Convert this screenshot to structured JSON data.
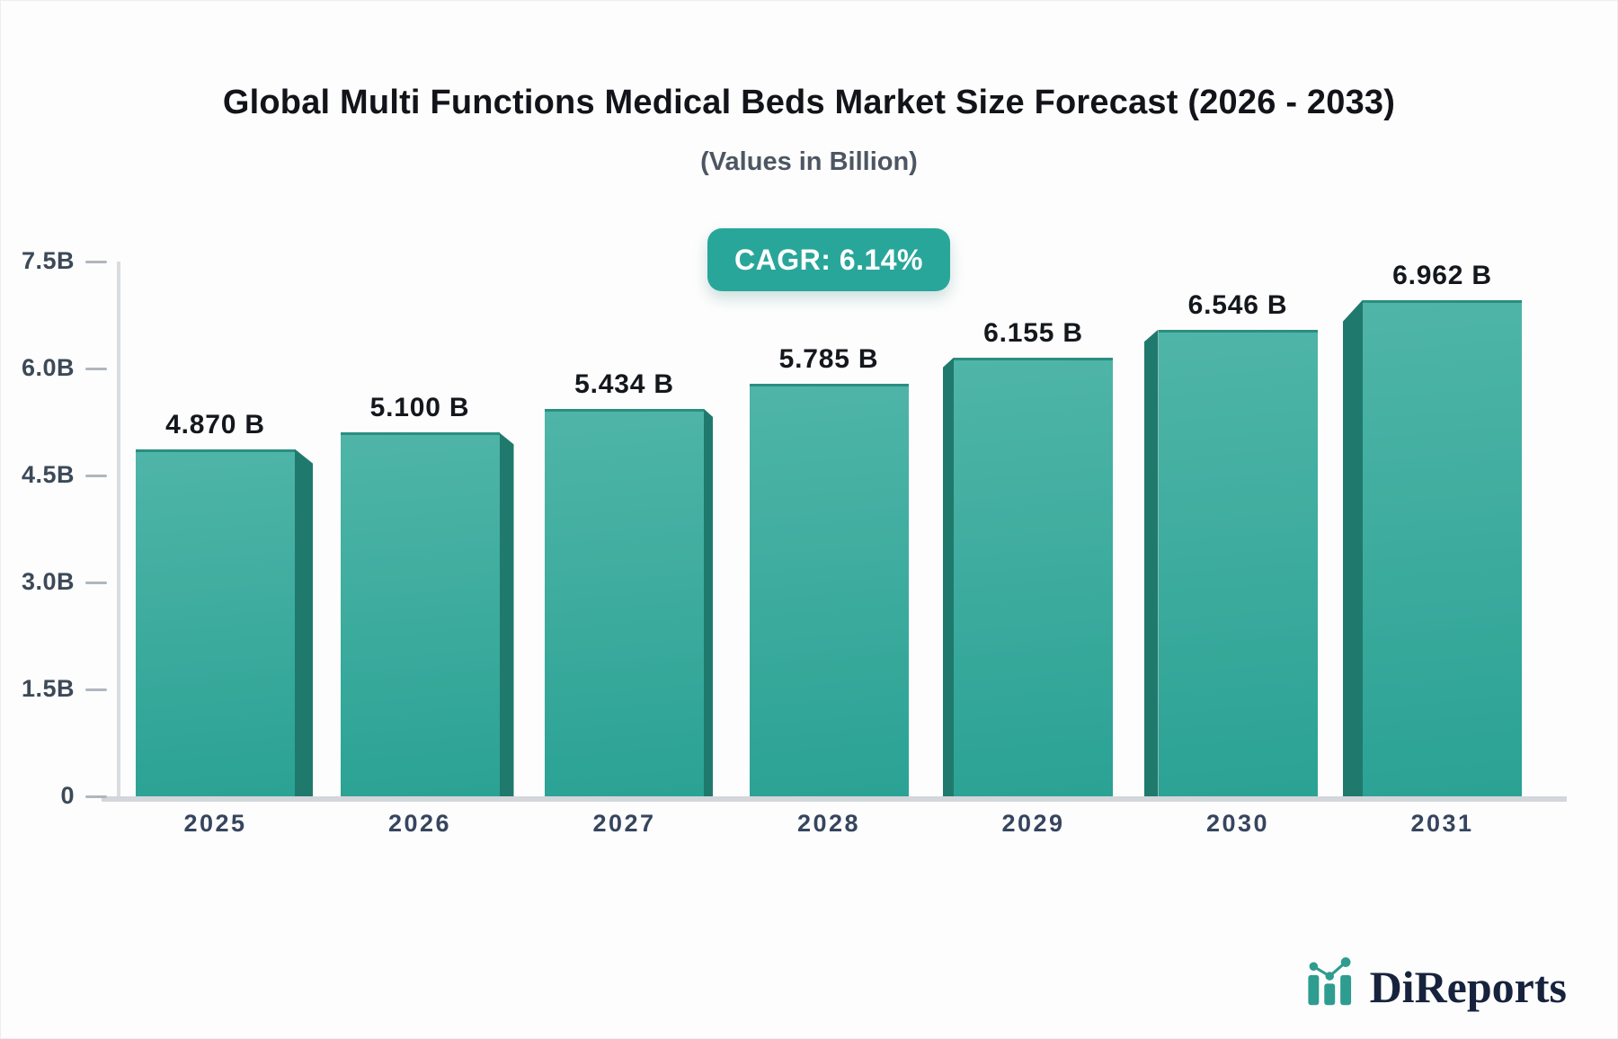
{
  "header": {
    "title": "Global Multi Functions Medical Beds Market Size Forecast (2026 - 2033)",
    "subtitle": "(Values in Billion)",
    "cagr_badge": "CAGR: 6.14%"
  },
  "chart_data": {
    "type": "bar",
    "title": "Global Multi Functions Medical Beds Market Size Forecast (2026 - 2033)",
    "subtitle": "(Values in Billion)",
    "annotation": "CAGR: 6.14%",
    "categories": [
      "2025",
      "2026",
      "2027",
      "2028",
      "2029",
      "2030",
      "2031"
    ],
    "values": [
      4.87,
      5.1,
      5.434,
      5.785,
      6.155,
      6.546,
      6.962
    ],
    "value_labels": [
      "4.870 B",
      "5.100 B",
      "5.434 B",
      "5.785 B",
      "6.155 B",
      "6.546 B",
      "6.962 B"
    ],
    "xlabel": "",
    "ylabel": "",
    "ylim": [
      0,
      7.5
    ],
    "yticks": [
      {
        "value": 0,
        "label": "0"
      },
      {
        "value": 1.5,
        "label": "1.5B"
      },
      {
        "value": 3.0,
        "label": "3.0B"
      },
      {
        "value": 4.5,
        "label": "4.5B"
      },
      {
        "value": 6.0,
        "label": "6.0B"
      },
      {
        "value": 7.5,
        "label": "7.5B"
      }
    ],
    "grid": false,
    "legend": false,
    "bar_style": "3d-extruded, vanishing point at center"
  },
  "footer": {
    "logo_text": "DiReports"
  },
  "colors": {
    "bar_face_top": "#4fb5a8",
    "bar_face_bottom": "#2aa294",
    "bar_top_edge": "#2b8e81",
    "bar_side": "#1f7a6d",
    "badge_background": "#29a69a",
    "badge_text": "#ffffff",
    "axis_line": "#d9dce0",
    "tick_label": "#3c4958",
    "value_label": "#14171c",
    "logo_navy": "#17233d"
  }
}
